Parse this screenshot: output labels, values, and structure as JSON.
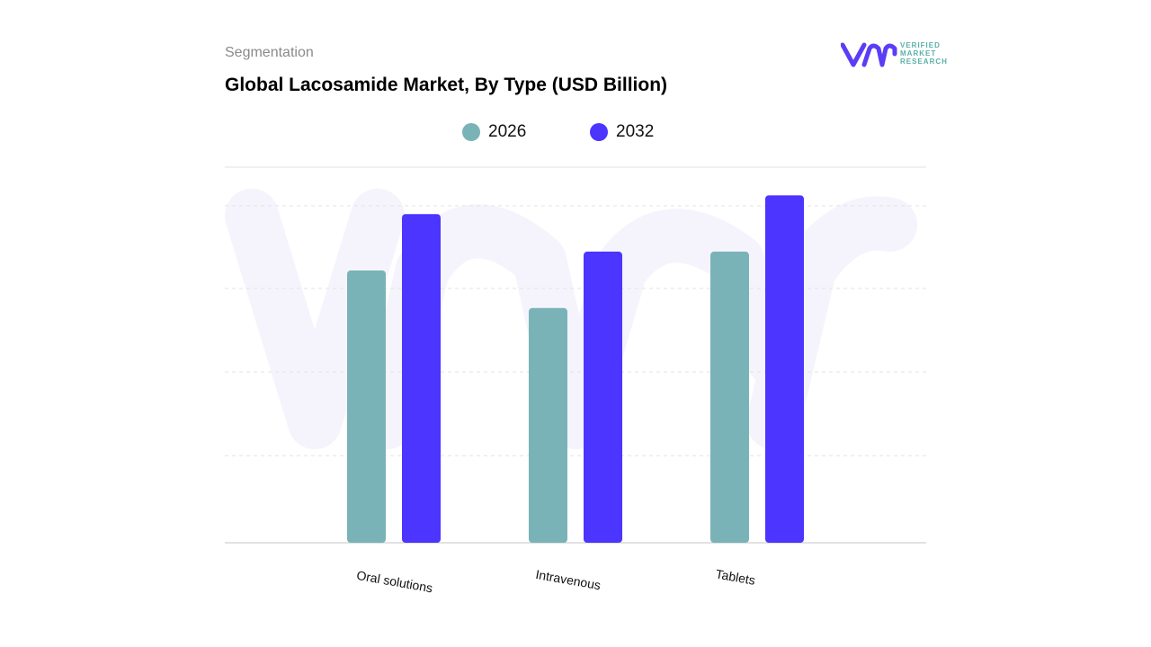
{
  "header": {
    "segment_label": "Segmentation",
    "title": "Global Lacosamide Market, By Type (USD Billion)"
  },
  "logo": {
    "lettering": "VERIFIED MARKET RESEARCH",
    "line1": "VERIFIED",
    "line2": "MARKET",
    "line3": "RESEARCH",
    "colors": {
      "mark": "#5b3df5",
      "text": "#5ab0a8"
    }
  },
  "colors": {
    "s2026": "#7ab3b7",
    "s2032": "#4b35ff",
    "grid": "#e3e3e3"
  },
  "chart_data": {
    "type": "bar",
    "title": "Global Lacosamide Market, By Type (USD Billion)",
    "xlabel": "",
    "ylabel": "",
    "categories": [
      "Oral solutions",
      "Intravenous",
      "Tablets"
    ],
    "series": [
      {
        "name": "2026",
        "values": [
          2.9,
          2.5,
          3.1
        ]
      },
      {
        "name": "2032",
        "values": [
          3.5,
          3.1,
          3.7
        ]
      }
    ],
    "ylim": [
      0,
      4.0
    ],
    "grid": true,
    "legend": "top-center"
  }
}
